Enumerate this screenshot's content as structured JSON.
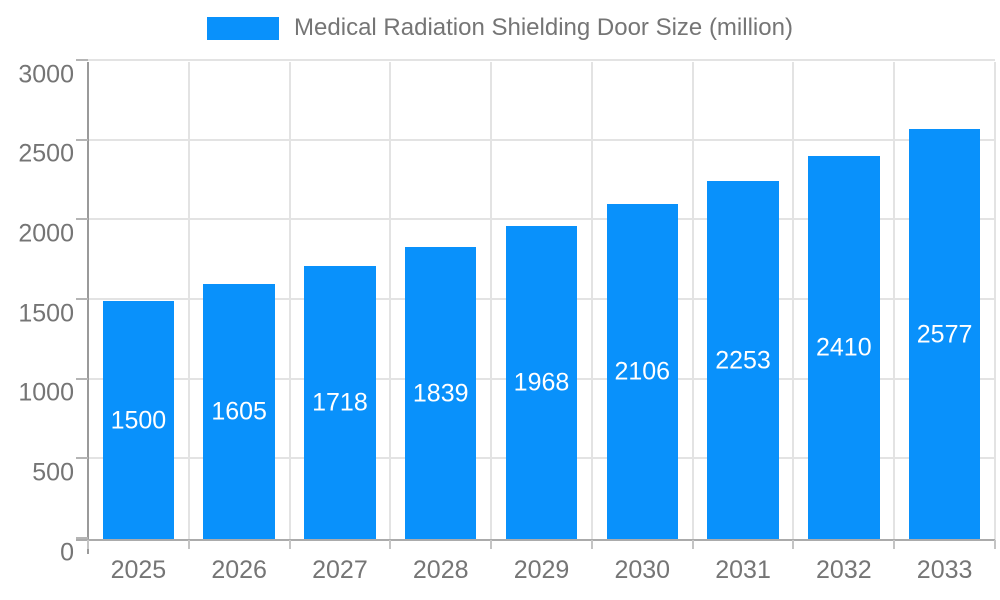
{
  "colors": {
    "bar": "#0991fb",
    "grid": "#e3e3e3",
    "axis": "#9a9a9a",
    "tick_label": "#757575",
    "bar_label": "#ffffff",
    "legend_text": "#757575"
  },
  "legend": {
    "label": "Medical Radiation Shielding Door Size (million)",
    "position": "top",
    "swatch_color": "#0991fb"
  },
  "chart_data": {
    "type": "bar",
    "title": "Medical Radiation Shielding Door Size (million)",
    "categories": [
      "2025",
      "2026",
      "2027",
      "2028",
      "2029",
      "2030",
      "2031",
      "2032",
      "2033"
    ],
    "values": [
      1500,
      1605,
      1718,
      1839,
      1968,
      2106,
      2253,
      2410,
      2577
    ],
    "series": [
      {
        "name": "Medical Radiation Shielding Door Size (million)",
        "values": [
          1500,
          1605,
          1718,
          1839,
          1968,
          2106,
          2253,
          2410,
          2577
        ]
      }
    ],
    "xlabel": "",
    "ylabel": "",
    "ylim": [
      0,
      3000
    ],
    "yticks": [
      0,
      500,
      1000,
      1500,
      2000,
      2500,
      3000
    ],
    "grid": true,
    "legend_position": "top",
    "bar_labels": "inside-centered",
    "bar_width_fraction": 0.71
  }
}
